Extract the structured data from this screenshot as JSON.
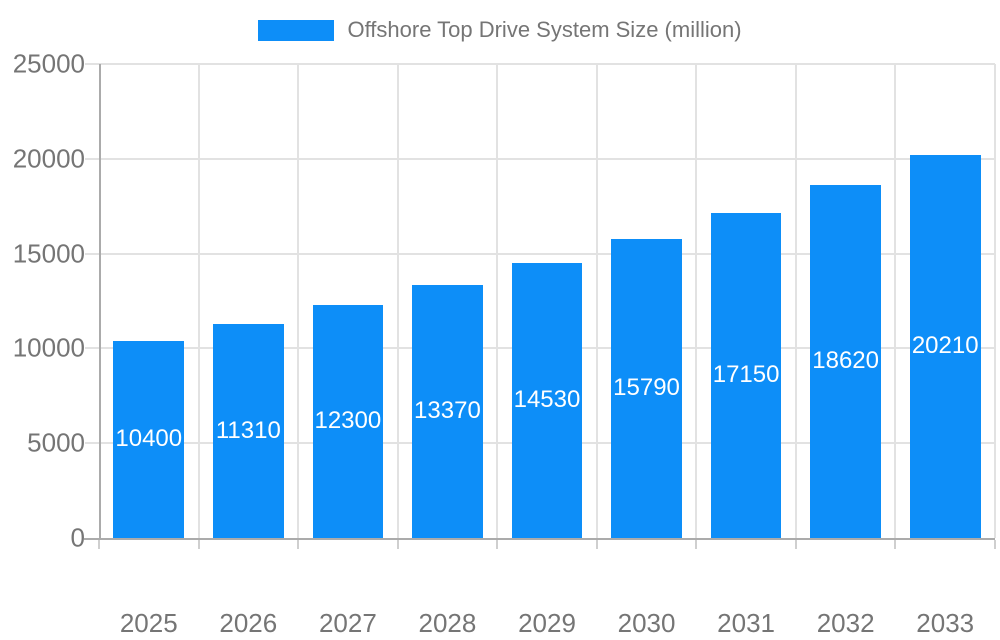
{
  "chart_data": {
    "type": "bar",
    "title": "Offshore Top Drive System Size (million)",
    "categories": [
      "2025",
      "2026",
      "2027",
      "2028",
      "2029",
      "2030",
      "2031",
      "2032",
      "2033"
    ],
    "values": [
      10400,
      11310,
      12300,
      13370,
      14530,
      15790,
      17150,
      18620,
      20210
    ],
    "xlabel": "",
    "ylabel": "",
    "ylim": [
      0,
      25000
    ],
    "yticks": [
      0,
      5000,
      10000,
      15000,
      20000,
      25000
    ],
    "grid": true,
    "legend_position": "top-center",
    "bar_value_labels_inside": true,
    "colors": {
      "bar": "#0D8EF8",
      "bar_label": "#FFFFFF",
      "axis_text": "#757575",
      "grid_line": "#E2E2E2",
      "axis_line": "#ABABAB",
      "tick": "#CFCFCF",
      "background": "#FFFFFF"
    }
  }
}
